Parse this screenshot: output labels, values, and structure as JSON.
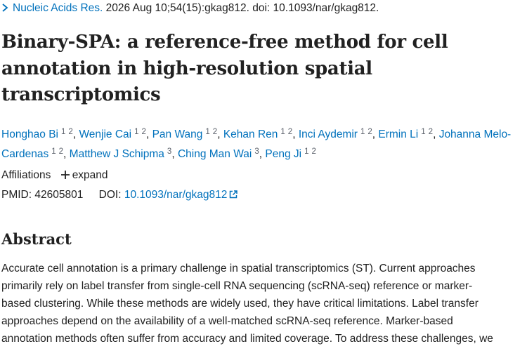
{
  "citation": {
    "journal": "Nucleic Acids Res.",
    "details": "2026 Aug 10;54(15):gkag812. doi: 10.1093/nar/gkag812."
  },
  "title_lines": [
    "Binary-SPA: a reference-free method for cell",
    "annotation in high-resolution spatial",
    "transcriptomics"
  ],
  "author_separator": ",",
  "authors": [
    {
      "name": "Honghao Bi",
      "affiliations": [
        "1",
        "2"
      ]
    },
    {
      "name": "Wenjie Cai",
      "affiliations": [
        "1",
        "2"
      ]
    },
    {
      "name": "Pan Wang",
      "affiliations": [
        "1",
        "2"
      ]
    },
    {
      "name": "Kehan Ren",
      "affiliations": [
        "1",
        "2"
      ]
    },
    {
      "name": "Inci Aydemir",
      "affiliations": [
        "1",
        "2"
      ]
    },
    {
      "name": "Ermin Li",
      "affiliations": [
        "1",
        "2"
      ]
    },
    {
      "name": "Johanna Melo-Cardenas",
      "affiliations": [
        "1",
        "2"
      ]
    },
    {
      "name": "Matthew J Schipma",
      "affiliations": [
        "3"
      ]
    },
    {
      "name": "Ching Man Wai",
      "affiliations": [
        "3"
      ]
    },
    {
      "name": "Peng Ji",
      "affiliations": [
        "1",
        "2"
      ]
    }
  ],
  "affiliations": {
    "label": "Affiliations",
    "expand": "expand"
  },
  "identifiers": {
    "pmid_label": "PMID:",
    "pmid": "42605801",
    "doi_label": "DOI:",
    "doi": "10.1093/nar/gkag812"
  },
  "abstract": {
    "heading": "Abstract",
    "lines": [
      "Accurate cell annotation is a primary challenge in spatial transcriptomics (ST). Current approaches",
      "primarily rely on label transfer from single-cell RNA sequencing (scRNA-seq) reference or marker-",
      "based clustering. While these methods are widely used, they have critical limitations. Label transfer",
      "approaches depend on the availability of a well-matched scRNA-seq reference. Marker-based",
      "annotation methods often suffer from accuracy and limited coverage. To address these challenges, we"
    ]
  }
}
